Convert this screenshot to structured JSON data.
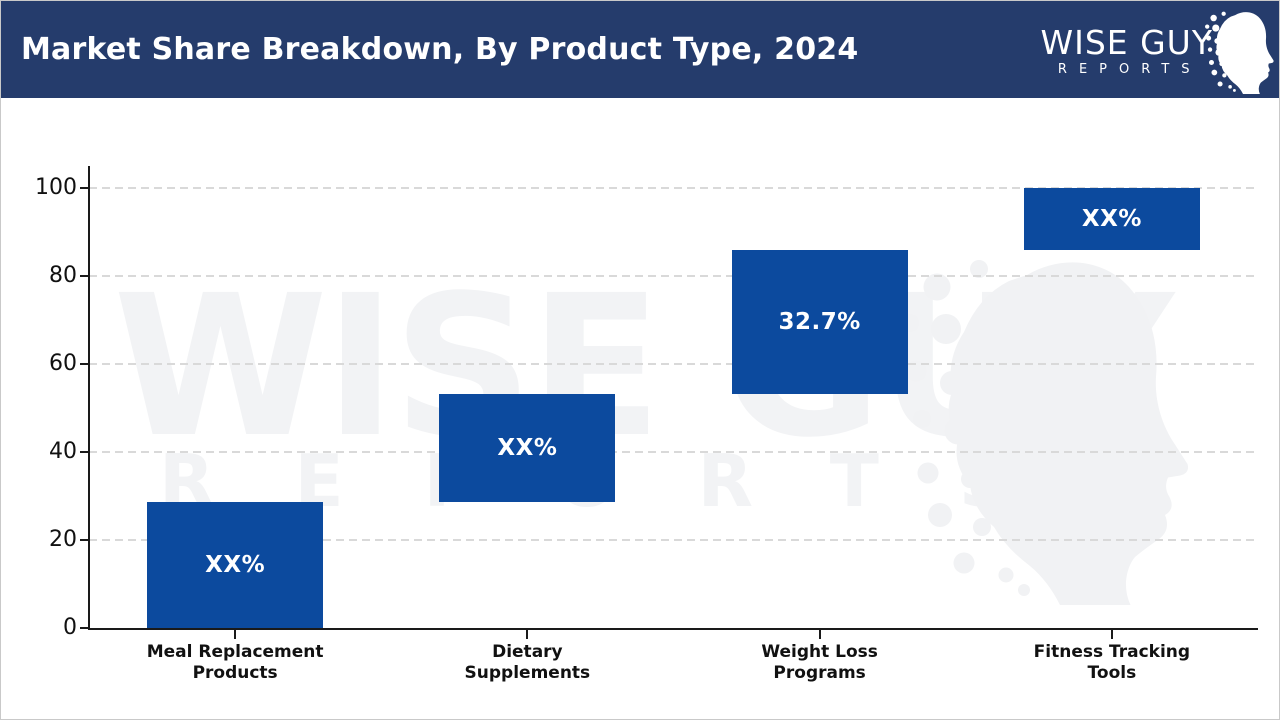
{
  "header": {
    "title": "Market Share Breakdown, By Product Type, 2024",
    "bg_color": "#253c6c",
    "logo": {
      "line1": "WISE GUY",
      "line2": "REPORTS"
    }
  },
  "watermark": {
    "line1": "WISE GUY",
    "line2": "REPORTS"
  },
  "chart_data": {
    "type": "bar",
    "subtype": "floating-stacked-waterfall",
    "title": "Market Share Breakdown, By Product Type, 2024",
    "xlabel": "",
    "ylabel": "",
    "ylim": [
      0,
      100
    ],
    "yticks": [
      0,
      20,
      40,
      60,
      80,
      100
    ],
    "grid": "dashed-horizontal",
    "legend": "none",
    "bar_color": "#0c4a9e",
    "categories": [
      "Meal Replacement Products",
      "Dietary Supplements",
      "Weight Loss Programs",
      "Fitness Tracking Tools"
    ],
    "bars": [
      {
        "category": "Meal Replacement Products",
        "category_lines": [
          "Meal Replacement",
          "Products"
        ],
        "start": 0,
        "end": 28.6,
        "value": 28.6,
        "label": "XX%"
      },
      {
        "category": "Dietary Supplements",
        "category_lines": [
          "Dietary",
          "Supplements"
        ],
        "start": 28.6,
        "end": 53.2,
        "value": 24.6,
        "label": "XX%"
      },
      {
        "category": "Weight Loss Programs",
        "category_lines": [
          "Weight Loss",
          "Programs"
        ],
        "start": 53.2,
        "end": 85.9,
        "value": 32.7,
        "label": "32.7%"
      },
      {
        "category": "Fitness Tracking Tools",
        "category_lines": [
          "Fitness Tracking",
          "Tools"
        ],
        "start": 85.9,
        "end": 100,
        "value": 14.1,
        "label": "XX%"
      }
    ]
  }
}
